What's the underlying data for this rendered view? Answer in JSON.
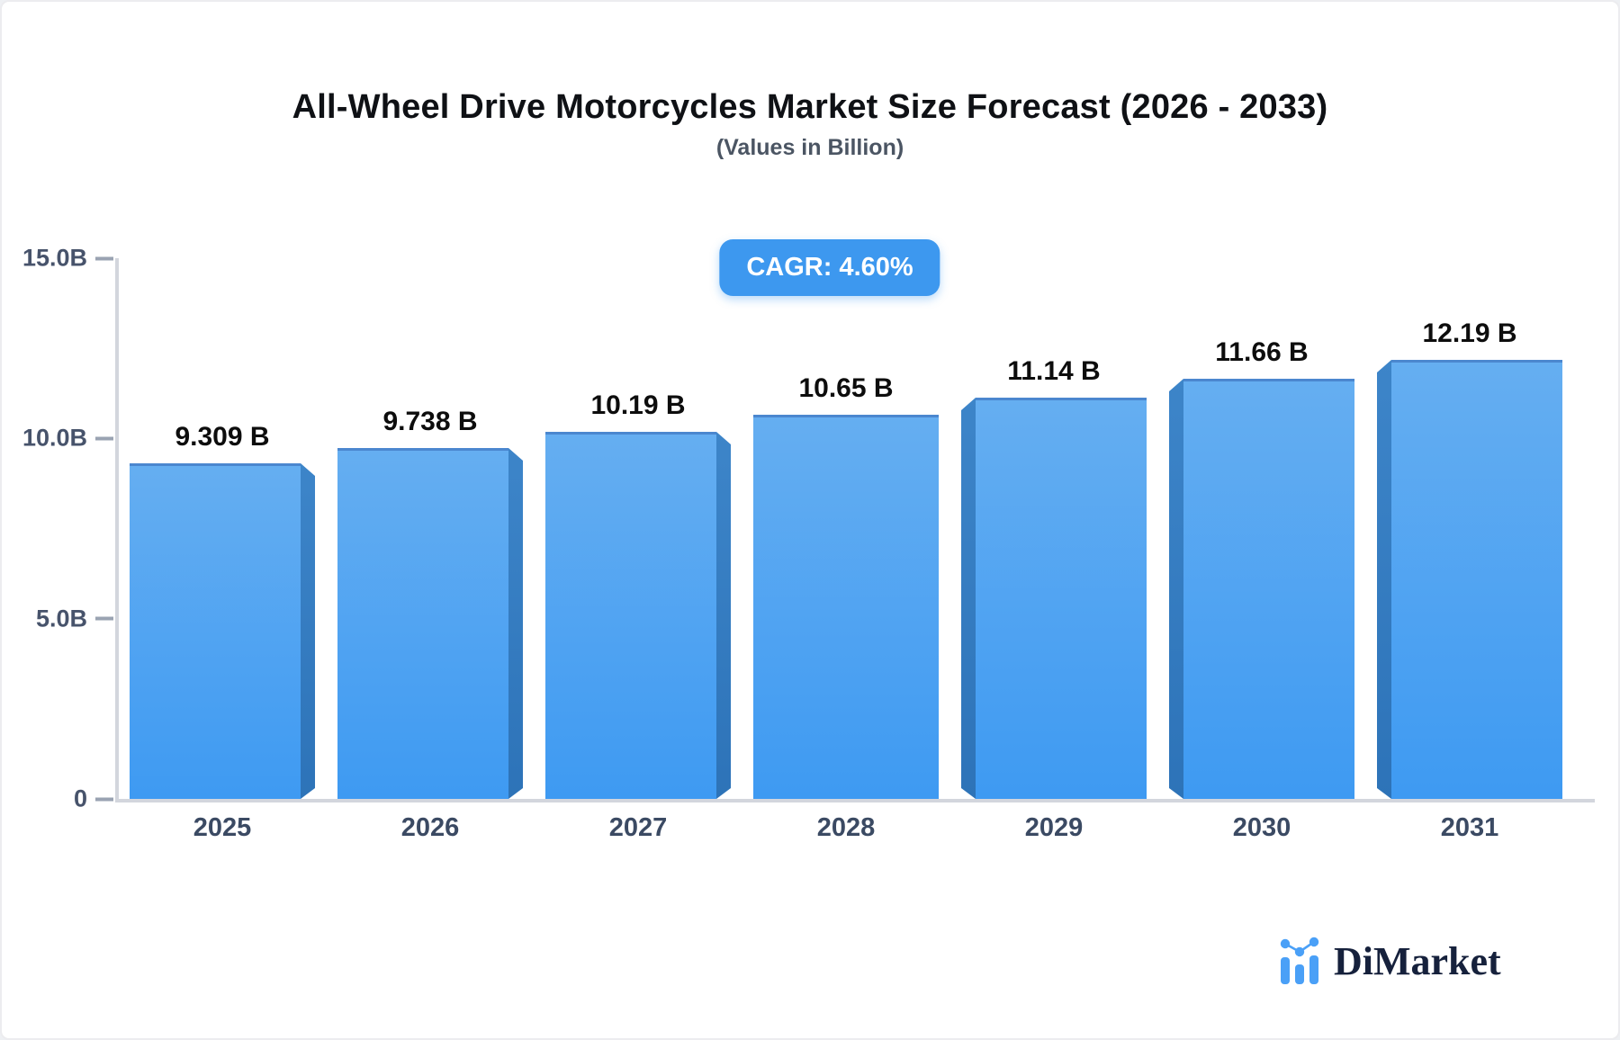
{
  "header": {
    "title": "All-Wheel Drive Motorcycles Market Size Forecast (2026 - 2033)",
    "subtitle": "(Values in Billion)"
  },
  "badge": {
    "label": "CAGR: 4.60%"
  },
  "chart_data": {
    "type": "bar",
    "title": "All-Wheel Drive Motorcycles Market Size Forecast (2026 - 2033)",
    "subtitle": "(Values in Billion)",
    "categories": [
      "2025",
      "2026",
      "2027",
      "2028",
      "2029",
      "2030",
      "2031"
    ],
    "values": [
      9.309,
      9.738,
      10.19,
      10.65,
      11.14,
      11.66,
      12.19
    ],
    "value_labels": [
      "9.309 B",
      "9.738 B",
      "10.19 B",
      "10.65 B",
      "11.14 B",
      "11.66 B",
      "12.19 B"
    ],
    "xlabel": "",
    "ylabel": "",
    "ylim": [
      0,
      15
    ],
    "yticks": [
      {
        "label": "15.0B",
        "value": 15.0
      },
      {
        "label": "10.0B",
        "value": 10.0
      },
      {
        "label": "5.0B",
        "value": 5.0
      },
      {
        "label": "0",
        "value": 0
      }
    ],
    "grid": false,
    "legend": false,
    "cagr": "4.60%"
  },
  "logo": {
    "text": "DiMarket",
    "icon": "bar-chart-logo-icon"
  },
  "colors": {
    "badge_bg": "#3d98ef",
    "bar_top": "#65aef1",
    "bar_bottom": "#3e9af2",
    "bar_side": "#2d73b8",
    "bar_edge": "#4b87cf",
    "axis": "#d3d6dd",
    "tick": "#9aa3b2",
    "logo_blue": "#4aa0f7",
    "logo_navy": "#16213c"
  }
}
